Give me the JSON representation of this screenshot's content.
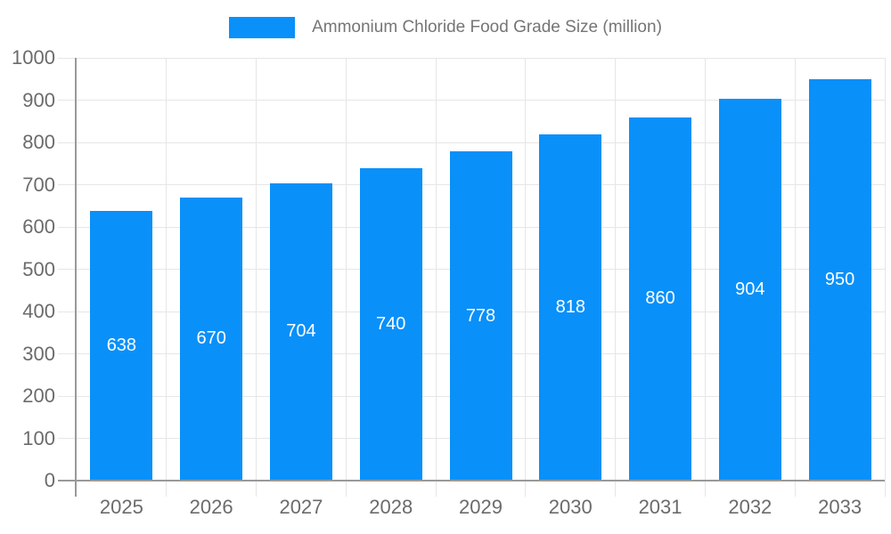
{
  "legend": {
    "label": "Ammonium Chloride Food Grade Size (million)"
  },
  "colors": {
    "bar": "#0a90f9",
    "grid": "#e6e6e6",
    "axis_line": "#999999",
    "axis_text": "#6b6b6b",
    "legend_text": "#757575",
    "bar_label_text": "#ffffff",
    "background": "#ffffff"
  },
  "chart_data": {
    "type": "bar",
    "title": "Ammonium Chloride Food Grade Size (million)",
    "categories": [
      "2025",
      "2026",
      "2027",
      "2028",
      "2029",
      "2030",
      "2031",
      "2032",
      "2033"
    ],
    "values": [
      638,
      670,
      704,
      740,
      778,
      818,
      860,
      904,
      950
    ],
    "xlabel": "",
    "ylabel": "",
    "ylim": [
      0,
      1000
    ],
    "yticks": [
      0,
      100,
      200,
      300,
      400,
      500,
      600,
      700,
      800,
      900,
      1000
    ],
    "grid": true,
    "legend_position": "top",
    "bar_value_labels": "inside-center"
  }
}
